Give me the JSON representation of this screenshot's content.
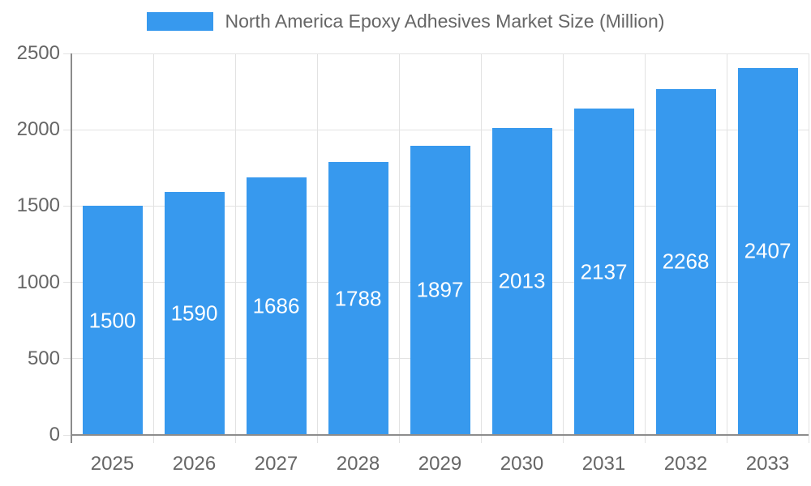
{
  "chart_data": {
    "type": "bar",
    "title": "North America Epoxy Adhesives Market Size (Million)",
    "legend": {
      "position": "top",
      "label": "North America Epoxy Adhesives Market Size (Million)"
    },
    "categories": [
      "2025",
      "2026",
      "2027",
      "2028",
      "2029",
      "2030",
      "2031",
      "2032",
      "2033"
    ],
    "values": [
      1500,
      1590,
      1686,
      1788,
      1897,
      2013,
      2137,
      2268,
      2407
    ],
    "xlabel": "",
    "ylabel": "",
    "ylim": [
      0,
      2500
    ],
    "y_ticks": [
      0,
      500,
      1000,
      1500,
      2000,
      2500
    ],
    "grid": "on",
    "value_labels": "inside-center",
    "colors": {
      "bar": "#3799EE",
      "bar_label_text": "#FFFFFF",
      "axis_text": "#666666",
      "grid_line": "#E2E2E2",
      "axis_line": "#8C8C8C",
      "background": "#FFFFFF"
    }
  }
}
